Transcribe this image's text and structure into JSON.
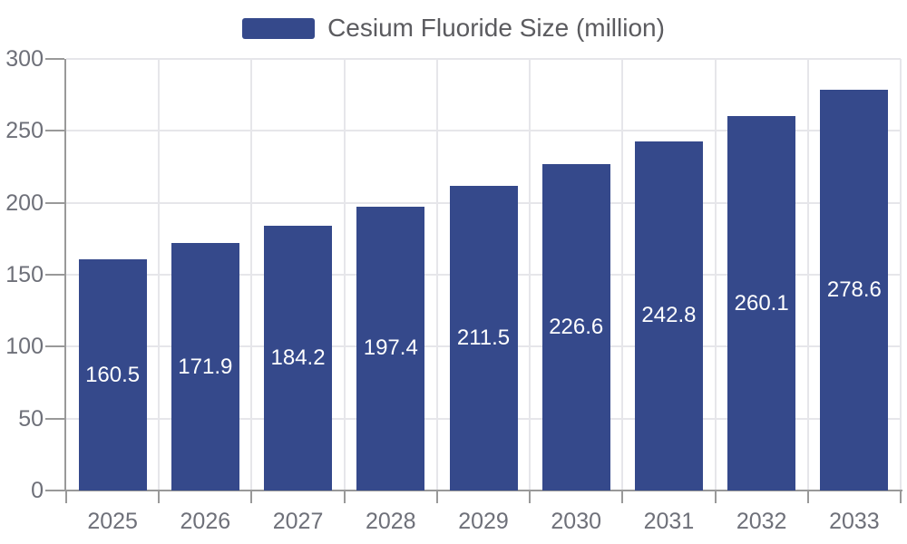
{
  "legend": {
    "label": "Cesium Fluoride Size (million)"
  },
  "chart_data": {
    "type": "bar",
    "title": "",
    "series_name": "Cesium Fluoride Size (million)",
    "categories": [
      "2025",
      "2026",
      "2027",
      "2028",
      "2029",
      "2030",
      "2031",
      "2032",
      "2033"
    ],
    "values": [
      160.5,
      171.9,
      184.2,
      197.4,
      211.5,
      226.6,
      242.8,
      260.1,
      278.6
    ],
    "xlabel": "",
    "ylabel": "",
    "ylim": [
      0,
      300
    ],
    "yticks": [
      0,
      50,
      100,
      150,
      200,
      250,
      300
    ],
    "grid": true,
    "legend_position": "top-center",
    "value_label_position": "inside-center",
    "colors": {
      "bar": "#35498b",
      "value_label": "#ffffff",
      "axis_line": "#999999",
      "grid_line": "#e6e6ea",
      "axis_label": "#6e7079",
      "legend_text": "#5b5b5f",
      "background": "#ffffff"
    }
  }
}
